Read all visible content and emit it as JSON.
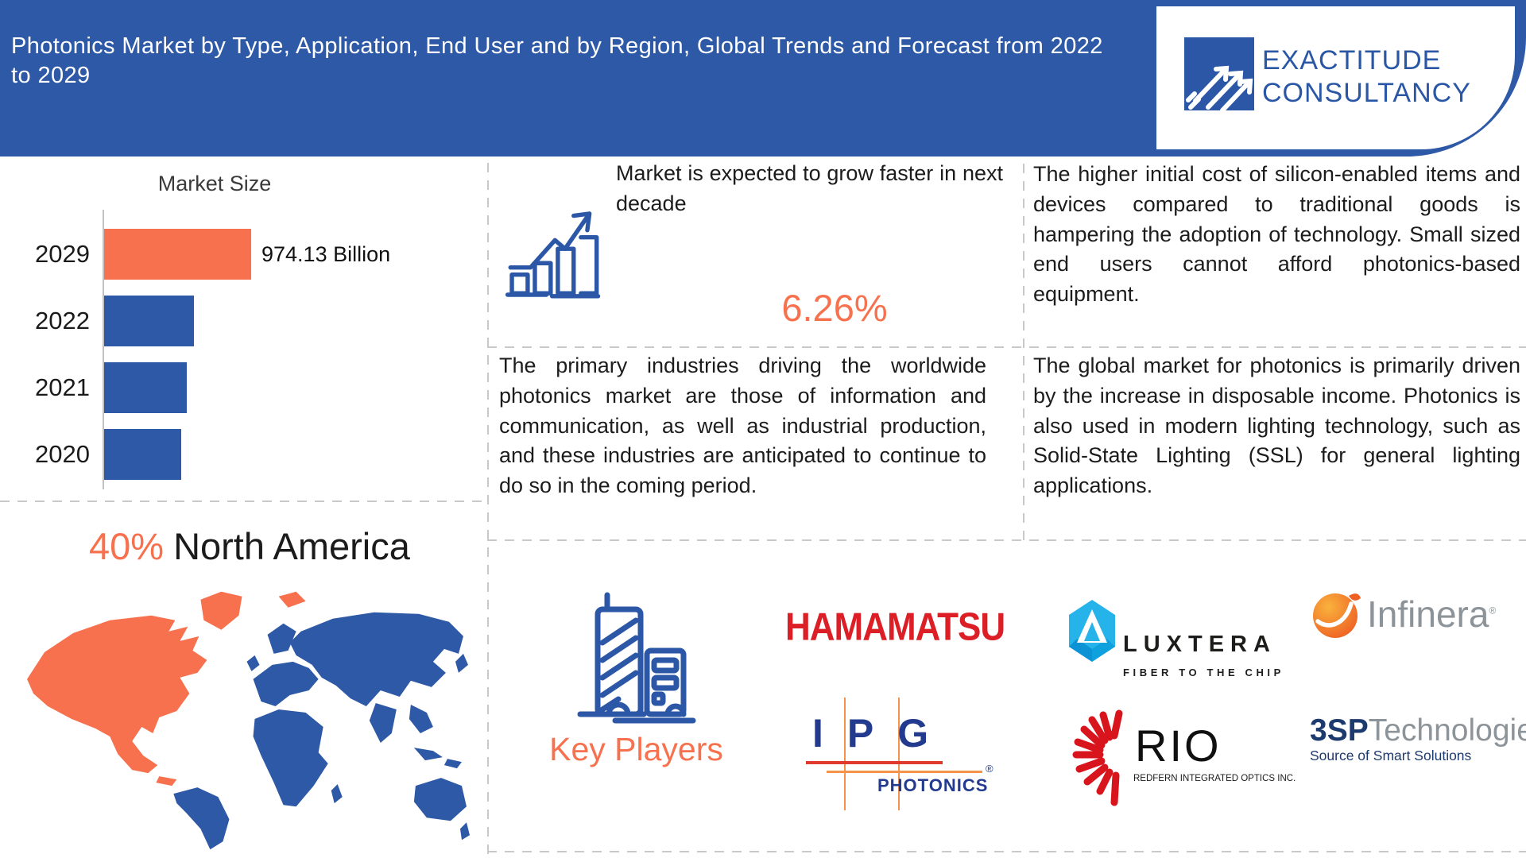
{
  "colors": {
    "header_blue": "#2D59A7",
    "bar_blue": "#2E59A6",
    "accent_orange": "#F7714E",
    "logo_blue": "#2A57A5",
    "dash_gray": "#C9C9C9",
    "text_dark": "#1C1C1C",
    "gray_brand": "#8D9499",
    "hamamatsu_red": "#DC1F26",
    "rio_red": "#D8151C",
    "ipg_navy": "#233B8F",
    "tsp_navy": "#1D3A6E",
    "luxtera_cyan": "#26B3E9"
  },
  "header": {
    "title": "Photonics Market by Type, Application, End User and by Region, Global Trends and Forecast from 2022 to 2029"
  },
  "logo": {
    "line1": "EXACTITUDE",
    "line2": "CONSULTANCY"
  },
  "chart_data": {
    "type": "bar",
    "orientation": "horizontal",
    "title": "Market Size",
    "categories": [
      "2029",
      "2022",
      "2021",
      "2020"
    ],
    "values": [
      974.13,
      595,
      548,
      510
    ],
    "value_labels": [
      "974.13 Billion",
      "",
      "",
      ""
    ],
    "unit": "USD Billion",
    "highlight_category": "2029",
    "xlabel": "",
    "ylabel": "",
    "legend": false,
    "grid": false,
    "note": "2029 bar orange with value label; 2022/2021/2020 bars blue, unlabeled (values estimated from bar lengths)"
  },
  "growth": {
    "headline": "Market is expected to grow faster in next decade",
    "cagr": "6.26%"
  },
  "insights": {
    "top_right": "The higher initial cost of silicon-enabled items and devices compared to traditional goods is hampering the adoption of technology. Small sized end users cannot afford photonics-based equipment.",
    "mid_left": "The primary industries driving the worldwide photonics market are those of information and communication, as well as industrial production, and these industries are anticipated to continue to do so in the coming period.",
    "mid_right": "The global market for photonics is primarily driven by the increase in disposable income. Photonics is also used in modern lighting technology, such as Solid-State Lighting (SSL) for general lighting applications."
  },
  "region": {
    "percent": "40%",
    "name": "North America"
  },
  "key_players": {
    "heading": "Key Players",
    "hamamatsu": "HAMAMATSU",
    "luxtera_name": "LUXTERA",
    "luxtera_tagline": "FIBER TO THE CHIP",
    "infinera_name": "Infinera",
    "infinera_reg": "®",
    "ipg_name": "IPG",
    "ipg_sub": "PHOTONICS",
    "ipg_reg": "®",
    "rio_name": "RIO",
    "rio_tagline": "REDFERN INTEGRATED OPTICS INC.",
    "tsp_name": "3SP",
    "tsp_name2": "Technologies",
    "tsp_tagline": "Source of Smart Solutions"
  }
}
